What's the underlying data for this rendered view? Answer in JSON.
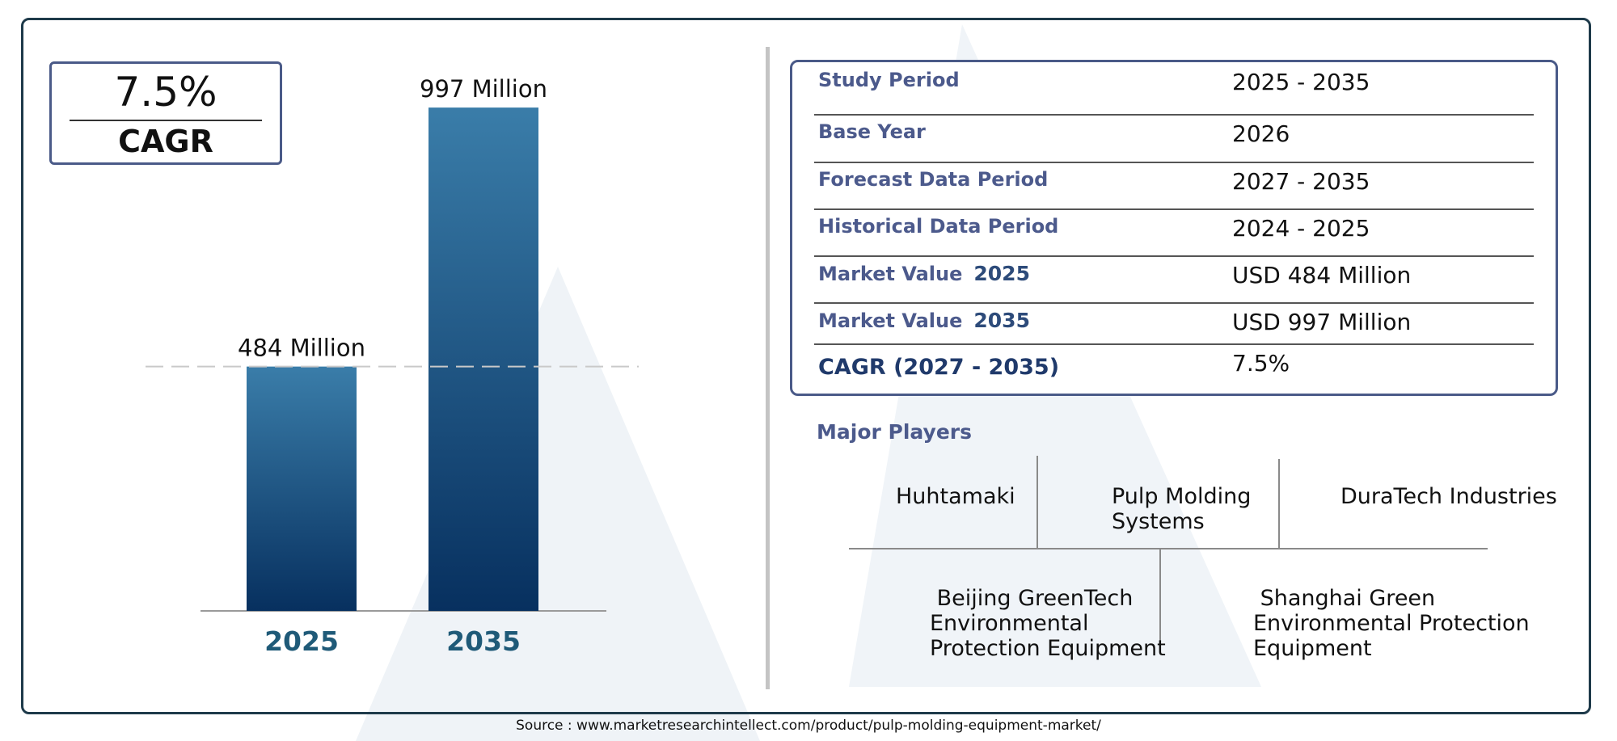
{
  "cagr_box": {
    "value": "7.5%",
    "label": "CAGR"
  },
  "chart_data": {
    "type": "bar",
    "categories": [
      "2025",
      "2035"
    ],
    "values": [
      484,
      997
    ],
    "data_labels": [
      "484 Million",
      "997 Million"
    ],
    "title": "",
    "xlabel": "",
    "ylabel": "",
    "ylim": [
      0,
      1050
    ],
    "grid": false,
    "reference_line": 484,
    "colors": {
      "bar_top": "#3a7da9",
      "bar_bottom": "#07305f",
      "tick_label": "#1f5a78"
    }
  },
  "info_table": [
    {
      "key": "Study Period",
      "year": "",
      "value": "2025 - 2035"
    },
    {
      "key": "Base Year",
      "year": "",
      "value": "2026"
    },
    {
      "key": "Forecast Data Period",
      "year": "",
      "value": "2027 - 2035"
    },
    {
      "key": "Historical Data Period",
      "year": "",
      "value": "2024 - 2025"
    },
    {
      "key": "Market Value",
      "year": "2025",
      "value": "USD 484 Million"
    },
    {
      "key": "Market Value",
      "year": "2035",
      "value": "USD 997 Million"
    },
    {
      "key": "CAGR (2027 - 2035)",
      "year": "",
      "value": "7.5%"
    }
  ],
  "players": {
    "heading": "Major Players",
    "row1": [
      {
        "name": "Huhtamaki"
      },
      {
        "name": "Pulp Molding\nSystems"
      },
      {
        "name": "DuraTech Industries"
      }
    ],
    "row2": [
      {
        "name": " Beijing GreenTech\nEnvironmental\nProtection Equipment"
      },
      {
        "name": " Shanghai Green\nEnvironmental Protection\nEquipment"
      }
    ]
  },
  "source": "Source : www.marketresearchintellect.com/product/pulp-molding-equipment-market/",
  "colors": {
    "frame": "#1e3a4a",
    "accent": "#4c5a8c",
    "watermark": "#e8eef3"
  }
}
